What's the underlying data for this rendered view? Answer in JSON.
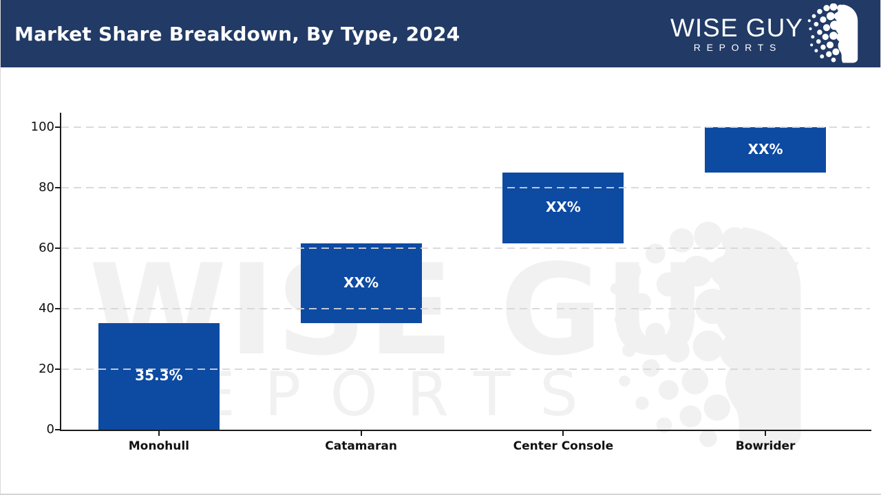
{
  "header": {
    "title": "Market Share Breakdown, By Type, 2024",
    "logo": {
      "brand_top": "WISE GUY",
      "brand_bottom": "REPORTS"
    }
  },
  "watermark": {
    "line1": "WISE GUY",
    "line2": "REPORTS"
  },
  "chart_data": {
    "type": "bar",
    "subtype": "waterfall",
    "title": "Market Share Breakdown, By Type, 2024",
    "categories": [
      "Monohull",
      "Catamaran",
      "Center Console",
      "Bowrider"
    ],
    "segments": [
      {
        "category": "Monohull",
        "start": 0,
        "end": 35.3,
        "value": 35.3,
        "label": "35.3%"
      },
      {
        "category": "Catamaran",
        "start": 35.3,
        "end": 61.6,
        "value": 26.3,
        "label": "XX%"
      },
      {
        "category": "Center Console",
        "start": 61.6,
        "end": 85.0,
        "value": 23.4,
        "label": "XX%"
      },
      {
        "category": "Bowrider",
        "start": 85.0,
        "end": 100.0,
        "value": 15.0,
        "label": "XX%"
      }
    ],
    "xlabel": "",
    "ylabel": "",
    "ylim": [
      0,
      105
    ],
    "yticks": [
      0,
      20,
      40,
      60,
      80,
      100
    ],
    "grid": "horizontal dashed, drawn over bars",
    "legend": "none"
  },
  "colors": {
    "header_bg": "#213A66",
    "bar": "#0D4AA2",
    "bar_label": "#FFFFFF",
    "grid": "#D6D6D6",
    "axis": "#1A1A1A",
    "watermark": "#F1F1F1",
    "page_bg": "#FFFFFF"
  }
}
